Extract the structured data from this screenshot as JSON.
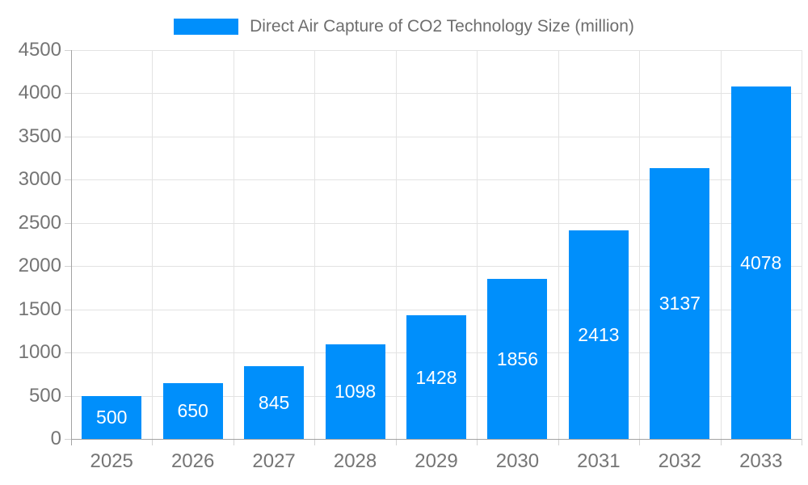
{
  "legend": {
    "swatch_color": "#008FFB",
    "label": "Direct Air Capture of CO2 Technology Size (million)"
  },
  "chart_data": {
    "type": "bar",
    "title": "Direct Air Capture of CO2 Technology Size (million)",
    "categories": [
      "2025",
      "2026",
      "2027",
      "2028",
      "2029",
      "2030",
      "2031",
      "2032",
      "2033"
    ],
    "values": [
      500,
      650,
      845,
      1098,
      1428,
      1856,
      2413,
      3137,
      4078
    ],
    "data_labels": [
      "500",
      "650",
      "845",
      "1098",
      "1428",
      "1856",
      "2413",
      "3137",
      "4078"
    ],
    "xlabel": "",
    "ylabel": "",
    "ylim": [
      0,
      4500
    ],
    "ytick_step": 500,
    "ytick_labels": [
      "0",
      "500",
      "1000",
      "1500",
      "2000",
      "2500",
      "3000",
      "3500",
      "4000",
      "4500"
    ],
    "grid": true,
    "legend_position": "top"
  },
  "colors": {
    "bar": "#008FFB",
    "grid": "#e3e3e3",
    "axis": "#a3a3a3",
    "tick": "#d2d2d2",
    "tick_label": "#757575",
    "title": "#6e6e6e",
    "data_label": "#ffffff",
    "background": "#ffffff"
  }
}
